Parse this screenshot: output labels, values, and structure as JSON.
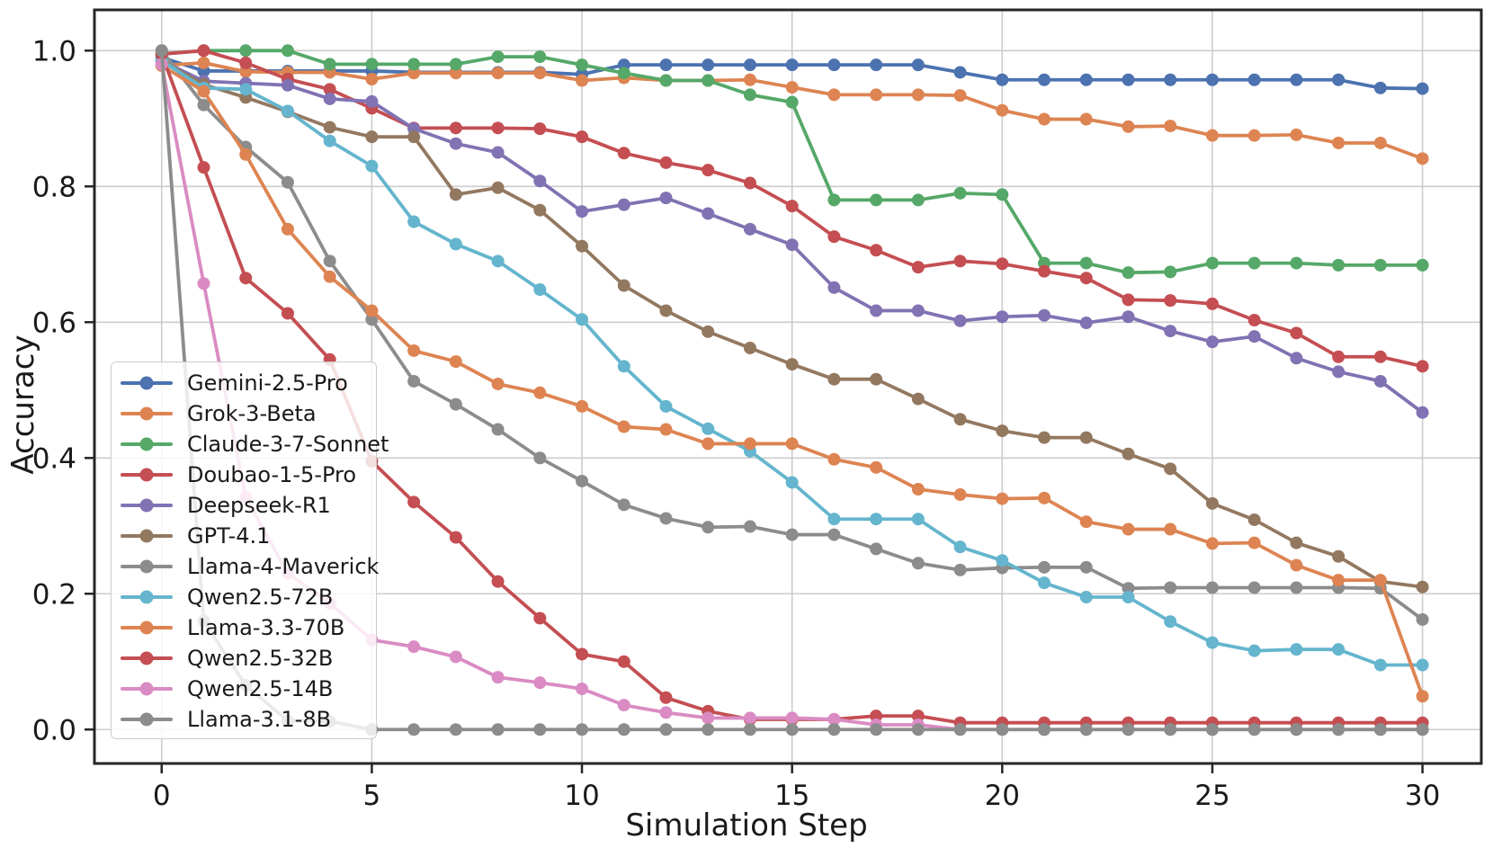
{
  "figure": {
    "background": "#ffffff"
  },
  "axes": {
    "xlabel": "Simulation Step",
    "ylabel": "Accuracy",
    "x_tick_labels": [
      "0",
      "5",
      "10",
      "15",
      "20",
      "25",
      "30"
    ],
    "x_tick_values": [
      0,
      5,
      10,
      15,
      20,
      25,
      30
    ],
    "y_tick_labels": [
      "0.0",
      "0.2",
      "0.4",
      "0.6",
      "0.8",
      "1.0"
    ],
    "y_tick_values": [
      0,
      0.2,
      0.4,
      0.6,
      0.8,
      1.0
    ],
    "grid_color": "#cccccc",
    "spine_color": "#262626",
    "tick_text_color": "#1a1a1a"
  },
  "chart_data": {
    "type": "line",
    "title": "",
    "xlabel": "Simulation Step",
    "ylabel": "Accuracy",
    "xlim": [
      -1.6,
      31.4
    ],
    "ylim": [
      -0.05,
      1.06
    ],
    "grid": true,
    "legend_position": "lower left inside",
    "x": [
      0,
      1,
      2,
      3,
      4,
      5,
      6,
      7,
      8,
      9,
      10,
      11,
      12,
      13,
      14,
      15,
      16,
      17,
      18,
      19,
      20,
      21,
      22,
      23,
      24,
      25,
      26,
      27,
      28,
      29,
      30
    ],
    "series": [
      {
        "name": "Gemini-2.5-Pro",
        "color": "#4C72B0",
        "values": [
          0.99,
          0.97,
          0.97,
          0.97,
          0.97,
          0.97,
          0.968,
          0.968,
          0.968,
          0.968,
          0.965,
          0.979,
          0.979,
          0.979,
          0.979,
          0.979,
          0.979,
          0.979,
          0.979,
          0.968,
          0.957,
          0.957,
          0.957,
          0.957,
          0.957,
          0.957,
          0.957,
          0.957,
          0.957,
          0.945,
          0.944
        ]
      },
      {
        "name": "Grok-3-Beta",
        "color": "#DD8452",
        "values": [
          0.978,
          0.982,
          0.969,
          0.968,
          0.968,
          0.958,
          0.967,
          0.967,
          0.967,
          0.967,
          0.956,
          0.96,
          0.956,
          0.956,
          0.957,
          0.946,
          0.935,
          0.935,
          0.935,
          0.934,
          0.912,
          0.899,
          0.899,
          0.888,
          0.889,
          0.875,
          0.875,
          0.876,
          0.864,
          0.864,
          0.841
        ]
      },
      {
        "name": "Claude-3-7-Sonnet",
        "color": "#55A868",
        "values": [
          0.995,
          1.0,
          1.0,
          1.0,
          0.98,
          0.98,
          0.98,
          0.98,
          0.991,
          0.991,
          0.979,
          0.967,
          0.956,
          0.956,
          0.935,
          0.924,
          0.78,
          0.78,
          0.78,
          0.79,
          0.788,
          0.687,
          0.687,
          0.673,
          0.674,
          0.687,
          0.687,
          0.687,
          0.684,
          0.684,
          0.684
        ]
      },
      {
        "name": "Doubao-1-5-Pro",
        "color": "#C44E52",
        "values": [
          0.995,
          1.0,
          0.982,
          0.958,
          0.943,
          0.915,
          0.886,
          0.886,
          0.886,
          0.885,
          0.873,
          0.849,
          0.835,
          0.824,
          0.805,
          0.771,
          0.726,
          0.706,
          0.681,
          0.69,
          0.686,
          0.675,
          0.665,
          0.633,
          0.632,
          0.627,
          0.603,
          0.584,
          0.549,
          0.549,
          0.535
        ]
      },
      {
        "name": "Deepseek-R1",
        "color": "#8172B3",
        "values": [
          0.985,
          0.955,
          0.952,
          0.949,
          0.929,
          0.925,
          0.885,
          0.863,
          0.85,
          0.808,
          0.763,
          0.773,
          0.783,
          0.76,
          0.737,
          0.714,
          0.651,
          0.617,
          0.617,
          0.602,
          0.608,
          0.61,
          0.599,
          0.608,
          0.587,
          0.571,
          0.579,
          0.547,
          0.527,
          0.513,
          0.467
        ]
      },
      {
        "name": "GPT-4.1",
        "color": "#937860",
        "values": [
          0.985,
          0.95,
          0.931,
          0.91,
          0.887,
          0.873,
          0.873,
          0.788,
          0.798,
          0.765,
          0.712,
          0.654,
          0.617,
          0.586,
          0.562,
          0.538,
          0.516,
          0.516,
          0.487,
          0.457,
          0.44,
          0.43,
          0.43,
          0.406,
          0.384,
          0.333,
          0.309,
          0.275,
          0.255,
          0.218,
          0.21
        ]
      },
      {
        "name": "Llama-4-Maverick",
        "color": "#8C8C8C",
        "values": [
          1.0,
          0.92,
          0.858,
          0.806,
          0.69,
          0.604,
          0.513,
          0.479,
          0.442,
          0.4,
          0.366,
          0.331,
          0.311,
          0.298,
          0.299,
          0.287,
          0.287,
          0.266,
          0.245,
          0.235,
          0.238,
          0.239,
          0.239,
          0.208,
          0.209,
          0.209,
          0.209,
          0.209,
          0.209,
          0.208,
          0.162
        ]
      },
      {
        "name": "Qwen2.5-72B",
        "color": "#64B5CD",
        "values": [
          0.985,
          0.945,
          0.943,
          0.911,
          0.867,
          0.83,
          0.748,
          0.715,
          0.69,
          0.648,
          0.604,
          0.535,
          0.476,
          0.443,
          0.41,
          0.364,
          0.31,
          0.31,
          0.31,
          0.269,
          0.249,
          0.216,
          0.195,
          0.195,
          0.159,
          0.128,
          0.116,
          0.118,
          0.118,
          0.095,
          0.095
        ]
      },
      {
        "name": "Llama-3.3-70B",
        "color": "#DD8452",
        "values": [
          0.978,
          0.94,
          0.847,
          0.737,
          0.667,
          0.617,
          0.558,
          0.542,
          0.509,
          0.496,
          0.476,
          0.446,
          0.442,
          0.421,
          0.421,
          0.421,
          0.398,
          0.386,
          0.354,
          0.346,
          0.34,
          0.341,
          0.306,
          0.295,
          0.295,
          0.274,
          0.275,
          0.242,
          0.22,
          0.22,
          0.049
        ]
      },
      {
        "name": "Qwen2.5-32B",
        "color": "#C44E52",
        "values": [
          0.995,
          0.828,
          0.665,
          0.613,
          0.545,
          0.395,
          0.335,
          0.283,
          0.218,
          0.164,
          0.111,
          0.1,
          0.047,
          0.027,
          0.015,
          0.015,
          0.015,
          0.02,
          0.02,
          0.01,
          0.01,
          0.01,
          0.01,
          0.01,
          0.01,
          0.01,
          0.01,
          0.01,
          0.01,
          0.01,
          0.01
        ]
      },
      {
        "name": "Qwen2.5-14B",
        "color": "#DA8BC3",
        "values": [
          0.98,
          0.657,
          0.342,
          0.23,
          0.186,
          0.132,
          0.122,
          0.107,
          0.077,
          0.069,
          0.06,
          0.036,
          0.025,
          0.017,
          0.017,
          0.017,
          0.015,
          0.007,
          0.007,
          0.0,
          0.0,
          0.0,
          0.0,
          0.0,
          0.0,
          0.0,
          0.0,
          0.0,
          0.0,
          0.0,
          0.0
        ]
      },
      {
        "name": "Llama-3.1-8B",
        "color": "#8C8C8C",
        "values": [
          1.0,
          0.16,
          0.065,
          0.013,
          0.012,
          0.0,
          0.0,
          0.0,
          0.0,
          0.0,
          0.0,
          0.0,
          0.0,
          0.0,
          0.0,
          0.0,
          0.0,
          0.0,
          0.0,
          0.0,
          0.0,
          0.0,
          0.0,
          0.0,
          0.0,
          0.0,
          0.0,
          0.0,
          0.0,
          0.0,
          0.0
        ]
      }
    ]
  }
}
